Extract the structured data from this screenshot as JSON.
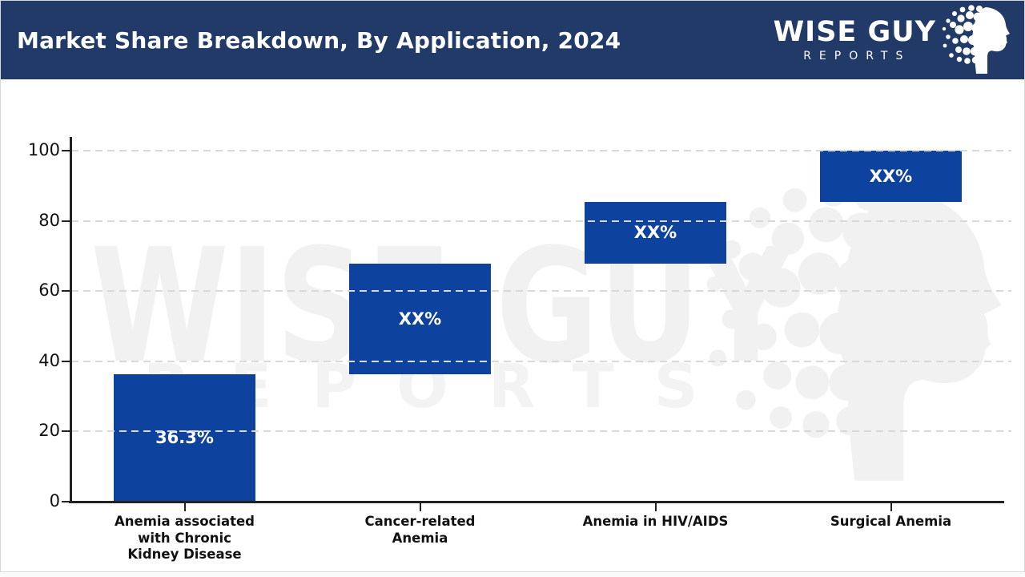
{
  "header": {
    "title": "Market Share Breakdown, By Application, 2024",
    "logo": {
      "line1": "WISE GUY",
      "line2": "REPORTS"
    }
  },
  "watermark": {
    "line1": "WISE GUY",
    "line2": "REPORTS"
  },
  "chart_data": {
    "type": "bar",
    "subtype": "waterfall (stacked percentage breakdown, segments sum to 100%)",
    "title": "Market Share Breakdown, By Application, 2024",
    "categories": [
      "Anemia associated with Chronic Kidney Disease",
      "Cancer-related Anemia",
      "Anemia in HIV/AIDS",
      "Surgical Anemia"
    ],
    "category_lines": [
      [
        "Anemia associated",
        "with Chronic",
        "Kidney Disease"
      ],
      [
        "Cancer-related",
        "Anemia"
      ],
      [
        "Anemia in HIV/AIDS"
      ],
      [
        "Surgical Anemia"
      ]
    ],
    "segments": [
      {
        "category": "Anemia associated with Chronic Kidney Disease",
        "start": 0,
        "end": 36.3,
        "value": 36.3,
        "label": "36.3%"
      },
      {
        "category": "Cancer-related Anemia",
        "start": 36.3,
        "end": 67.8,
        "value": 31.5,
        "label": "XX%"
      },
      {
        "category": "Anemia in HIV/AIDS",
        "start": 67.8,
        "end": 85.4,
        "value": 17.6,
        "label": "XX%"
      },
      {
        "category": "Surgical Anemia",
        "start": 85.4,
        "end": 100,
        "value": 14.6,
        "label": "XX%"
      }
    ],
    "xlabel": "",
    "ylabel": "",
    "ylim": [
      0,
      100
    ],
    "yticks": [
      0,
      20,
      40,
      60,
      80,
      100
    ],
    "grid": "horizontal dashed",
    "legend": "none",
    "bar_color": "#0d429e",
    "bar_label_color": "#ffffff"
  },
  "colors": {
    "header_bg": "#213a67",
    "bar": "#0d429e",
    "axis": "#222222",
    "grid": "#d9d9d9",
    "watermark": "#f1f1f1",
    "page_border": "#d9d9d9"
  }
}
